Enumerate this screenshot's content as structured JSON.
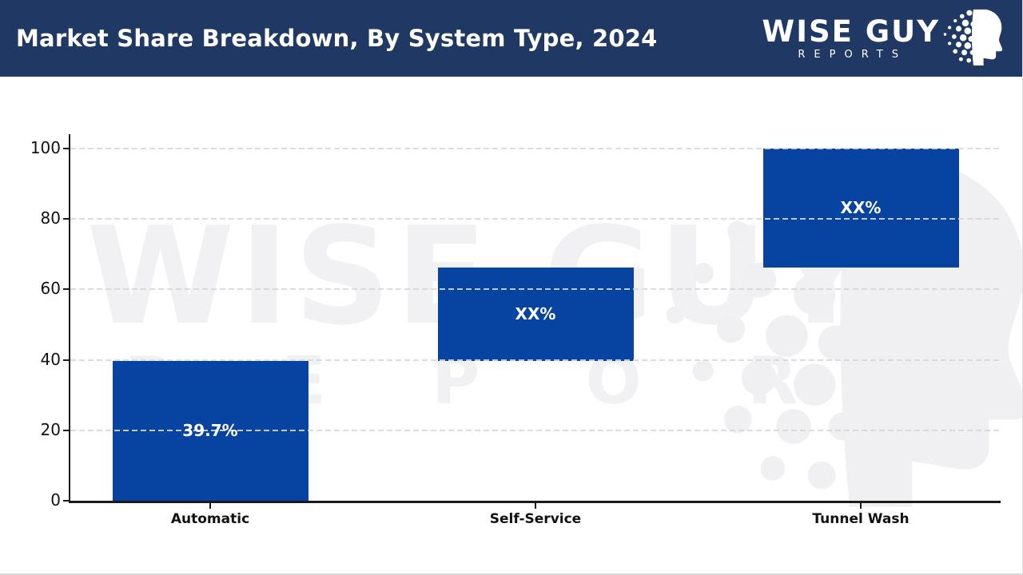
{
  "header": {
    "title": "Market Share Breakdown, By System Type, 2024",
    "background": "#1f3864",
    "logo": {
      "line1": "WISE GUY",
      "line2": "REPORTS"
    }
  },
  "watermark": {
    "line1": "WISE GUY",
    "line2": "R E P O R T S"
  },
  "chart_data": {
    "type": "bar",
    "variant": "waterfall",
    "title": "Market Share Breakdown, By System Type, 2024",
    "categories": [
      "Automatic",
      "Self-Service",
      "Tunnel Wash"
    ],
    "segments": [
      {
        "category": "Automatic",
        "start": 0,
        "end": 39.7,
        "label": "39.7%"
      },
      {
        "category": "Self-Service",
        "start": 39.7,
        "end": 66.3,
        "label": "XX%"
      },
      {
        "category": "Tunnel Wash",
        "start": 66.3,
        "end": 100,
        "label": "XX%"
      }
    ],
    "ylim": [
      0,
      100
    ],
    "yticks": [
      0,
      20,
      40,
      60,
      80,
      100
    ],
    "xlabel": "",
    "ylabel": "",
    "grid": "horizontal-dashed",
    "legend": "none",
    "bar_color": "#0743a0",
    "label_color": "#ffffff"
  }
}
